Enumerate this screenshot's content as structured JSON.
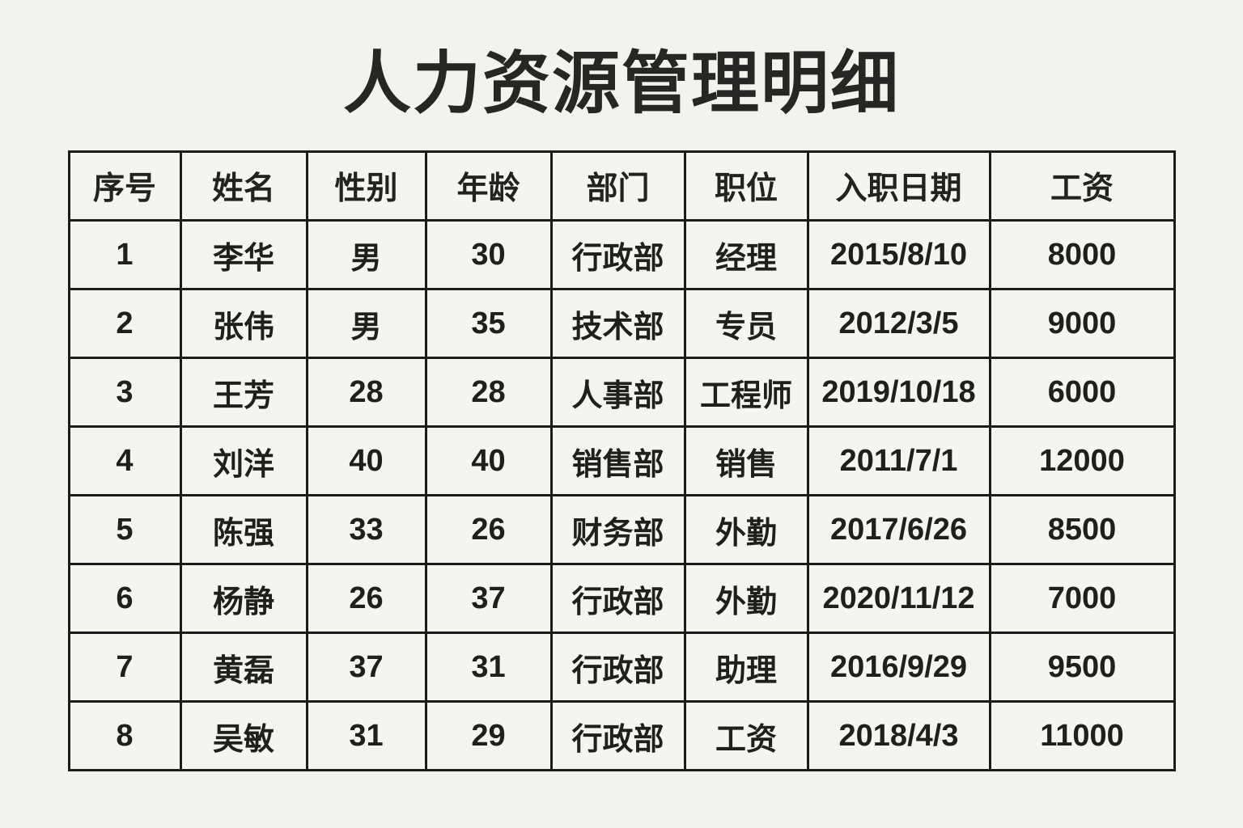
{
  "page": {
    "title": "人力资源管理明细",
    "background_color": "#f4f2ec",
    "border_color": "#1b1b1b",
    "text_color": "#1f1f1e"
  },
  "table": {
    "headers": [
      "序号",
      "姓名",
      "性别",
      "年龄",
      "部门",
      "职位",
      "入职日期",
      "工资"
    ],
    "rows": [
      [
        "1",
        "李华",
        "男",
        "30",
        "行政部",
        "经理",
        "2015/8/10",
        "8000"
      ],
      [
        "2",
        "张伟",
        "男",
        "35",
        "技术部",
        "专员",
        "2012/3/5",
        "9000"
      ],
      [
        "3",
        "王芳",
        "28",
        "28",
        "人事部",
        "工程师",
        "2019/10/18",
        "6000"
      ],
      [
        "4",
        "刘洋",
        "40",
        "40",
        "销售部",
        "销售",
        "2011/7/1",
        "12000"
      ],
      [
        "5",
        "陈强",
        "33",
        "26",
        "财务部",
        "外勤",
        "2017/6/26",
        "8500"
      ],
      [
        "6",
        "杨静",
        "26",
        "37",
        "行政部",
        "外勤",
        "2020/11/12",
        "7000"
      ],
      [
        "7",
        "黄磊",
        "37",
        "31",
        "行政部",
        "助理",
        "2016/9/29",
        "9500"
      ],
      [
        "8",
        "吴敏",
        "31",
        "29",
        "行政部",
        "工资",
        "2018/4/3",
        "11000"
      ]
    ]
  }
}
